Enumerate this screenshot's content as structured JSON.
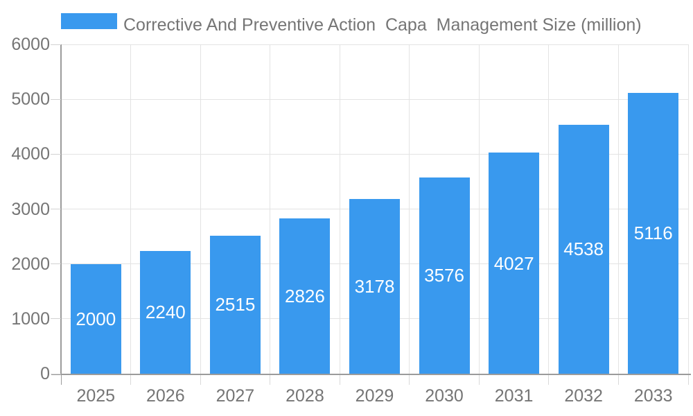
{
  "chart_data": {
    "type": "bar",
    "title": "Corrective And Preventive Action  Capa  Management Size (million)",
    "categories": [
      "2025",
      "2026",
      "2027",
      "2028",
      "2029",
      "2030",
      "2031",
      "2032",
      "2033"
    ],
    "values": [
      2000,
      2240,
      2515,
      2826,
      3178,
      3576,
      4027,
      4538,
      5116
    ],
    "xlabel": "",
    "ylabel": "",
    "ylim": [
      0,
      6000
    ],
    "ytick_interval": 1000,
    "ytick_labels": [
      "0",
      "1000",
      "2000",
      "3000",
      "4000",
      "5000",
      "6000"
    ],
    "grid": true,
    "legend_position": "top-left",
    "legend_entries": [
      "Corrective And Preventive Action  Capa  Management Size (million)"
    ],
    "colors": {
      "bar": "#3999ee",
      "bar_value_label": "#ffffff",
      "axis_line": "#9b9b9b",
      "gridline": "#e3e3e3",
      "tick": "#d2d2d2",
      "axis_text": "#757575",
      "background": "#ffffff"
    }
  }
}
